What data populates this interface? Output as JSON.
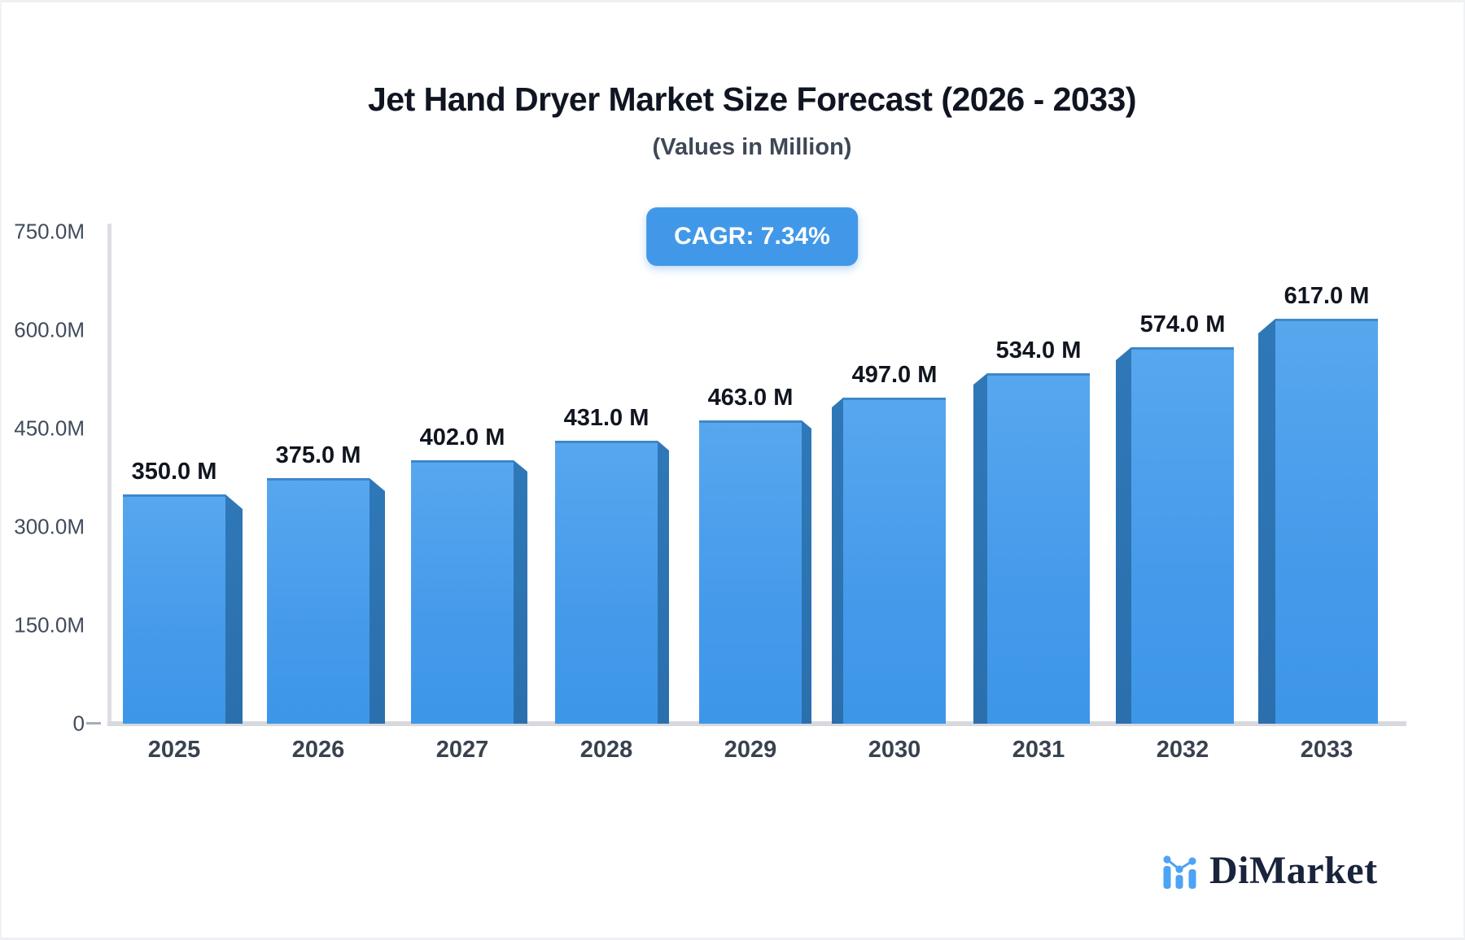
{
  "header": {
    "title": "Jet Hand Dryer Market Size Forecast (2026 - 2033)",
    "subtitle": "(Values in Million)",
    "cagr_badge": "CAGR: 7.34%"
  },
  "chart_data": {
    "type": "bar",
    "title": "Jet Hand Dryer Market Size Forecast (2026 - 2033)",
    "subtitle": "(Values in Million)",
    "annotation": "CAGR: 7.34%",
    "categories": [
      "2025",
      "2026",
      "2027",
      "2028",
      "2029",
      "2030",
      "2031",
      "2032",
      "2033"
    ],
    "values": [
      350.0,
      375.0,
      402.0,
      431.0,
      463.0,
      497.0,
      534.0,
      574.0,
      617.0
    ],
    "bar_labels": [
      "350.0 M",
      "375.0 M",
      "402.0 M",
      "431.0 M",
      "463.0 M",
      "497.0 M",
      "534.0 M",
      "574.0 M",
      "617.0 M"
    ],
    "unit": "Million",
    "xlabel": "",
    "ylabel": "",
    "ylim": [
      0,
      750
    ],
    "y_ticks": [
      {
        "label": "750.0M",
        "value": 750
      },
      {
        "label": "600.0M",
        "value": 600
      },
      {
        "label": "450.0M",
        "value": 450
      },
      {
        "label": "300.0M",
        "value": 300
      },
      {
        "label": "150.0M",
        "value": 150
      },
      {
        "label": "0",
        "value": 0
      }
    ],
    "grid": false,
    "legend": "none",
    "colors": {
      "bar_face": "#459aea",
      "bar_side": "#2e76b5",
      "badge": "#4298e8",
      "axis": "#d7d9de",
      "text_dark": "#10151f",
      "logo_blue": "#4da3f5",
      "logo_navy": "#19233c"
    }
  },
  "branding": {
    "logo_text": "DiMarket"
  }
}
